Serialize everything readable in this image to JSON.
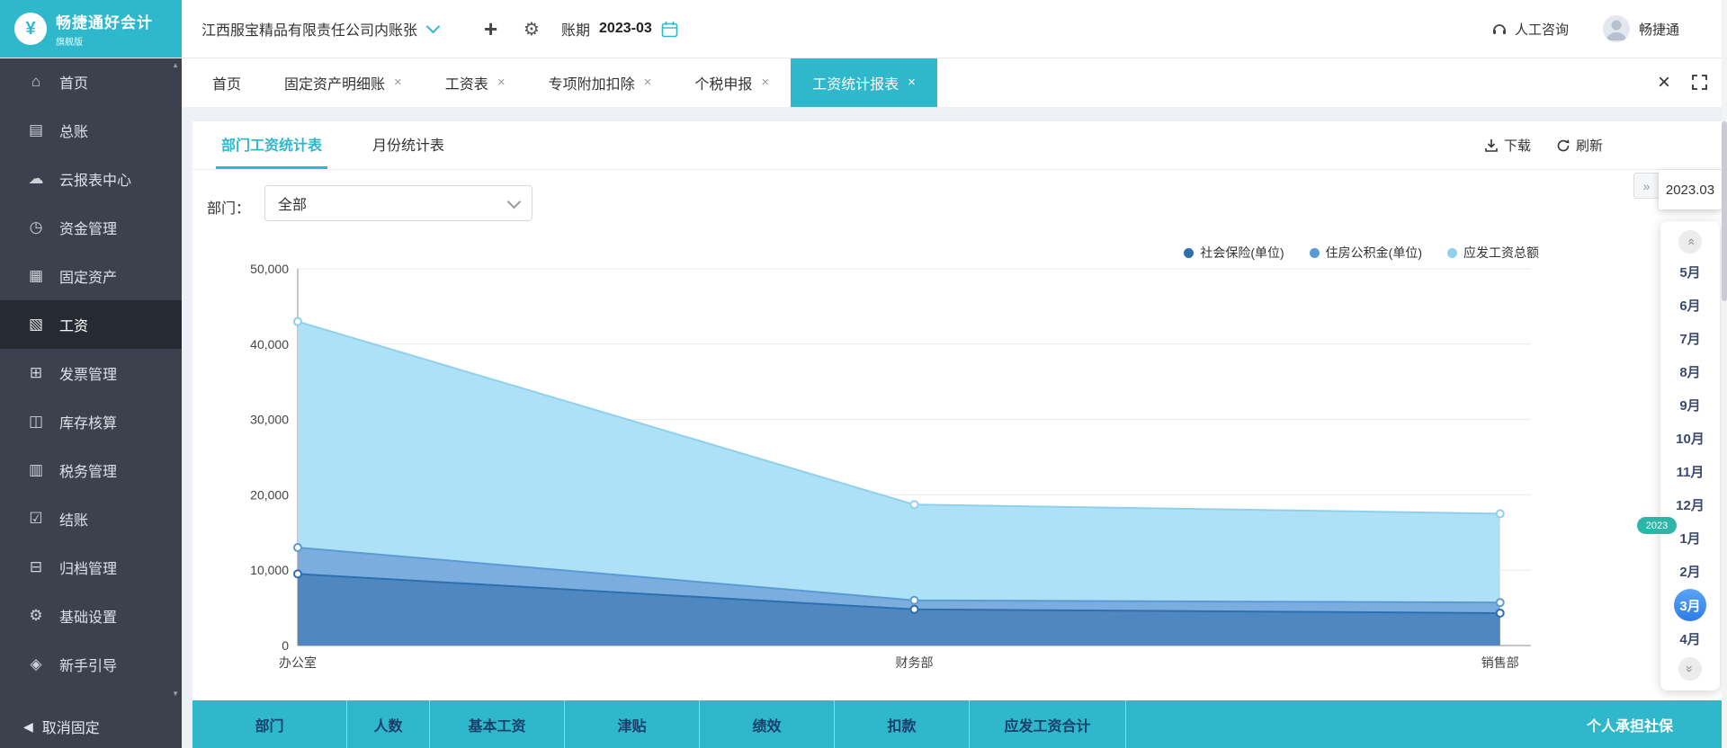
{
  "colors": {
    "teal": "#2FB8CC",
    "sidebar_bg": "#3c414d",
    "month_active_blue": "#2f7ce8",
    "year_badge_teal": "#2db5a8"
  },
  "glyphs": {
    "close": "×",
    "collapse_right": "»",
    "scroll_up": "▲",
    "scroll_down": "▼",
    "pin_left": "◀",
    "plus": "+",
    "gear": "⚙",
    "logo_currency": "¥"
  },
  "topbar": {
    "app_name": "畅捷通好会计",
    "app_edition": "旗舰版",
    "company": "江西服宝精品有限责任公司内账张",
    "period_label": "账期",
    "period_value": "2023-03",
    "consult_label": "人工咨询",
    "user_name": "畅捷通"
  },
  "window_tabs": [
    {
      "label": "首页",
      "closable": false,
      "active": false
    },
    {
      "label": "固定资产明细账",
      "closable": true,
      "active": false
    },
    {
      "label": "工资表",
      "closable": true,
      "active": false
    },
    {
      "label": "专项附加扣除",
      "closable": true,
      "active": false
    },
    {
      "label": "个税申报",
      "closable": true,
      "active": false
    },
    {
      "label": "工资统计报表",
      "closable": true,
      "active": true
    }
  ],
  "sidebar": {
    "items": [
      {
        "label": "首页",
        "icon": "home-icon",
        "glyph": "⌂",
        "active": false
      },
      {
        "label": "总账",
        "icon": "general-ledger-icon",
        "glyph": "▤",
        "active": false
      },
      {
        "label": "云报表中心",
        "icon": "cloud-report-icon",
        "glyph": "☁",
        "active": false
      },
      {
        "label": "资金管理",
        "icon": "funds-icon",
        "glyph": "◷",
        "active": false
      },
      {
        "label": "固定资产",
        "icon": "fixed-assets-icon",
        "glyph": "▦",
        "active": false
      },
      {
        "label": "工资",
        "icon": "salary-icon",
        "glyph": "▧",
        "active": true
      },
      {
        "label": "发票管理",
        "icon": "invoice-icon",
        "glyph": "⊞",
        "active": false
      },
      {
        "label": "库存核算",
        "icon": "inventory-icon",
        "glyph": "◫",
        "active": false
      },
      {
        "label": "税务管理",
        "icon": "tax-icon",
        "glyph": "▥",
        "active": false
      },
      {
        "label": "结账",
        "icon": "closing-icon",
        "glyph": "☑",
        "active": false
      },
      {
        "label": "归档管理",
        "icon": "archive-icon",
        "glyph": "⊟",
        "active": false
      },
      {
        "label": "基础设置",
        "icon": "settings-icon",
        "glyph": "⚙",
        "active": false
      },
      {
        "label": "新手引导",
        "icon": "guide-icon",
        "glyph": "◈",
        "active": false
      }
    ],
    "pin_label": "取消固定"
  },
  "report_panel": {
    "tabs": [
      {
        "label": "部门工资统计表",
        "active": true
      },
      {
        "label": "月份统计表",
        "active": false
      }
    ],
    "download_label": "下载",
    "refresh_label": "刷新",
    "dept_filter_label": "部门：",
    "dept_filter_value": "全部"
  },
  "chart_data": {
    "type": "area",
    "title": "",
    "xlabel": "",
    "ylabel": "",
    "categories": [
      "办公室",
      "财务部",
      "销售部"
    ],
    "category_positions": [
      0,
      0.5,
      0.975
    ],
    "series": [
      {
        "name": "社会保险(单位)",
        "values": [
          9500,
          4800,
          4300
        ],
        "color": "#2e6fae",
        "fill": "#4d85bf"
      },
      {
        "name": "住房公积金(单位)",
        "values": [
          13000,
          6000,
          5700
        ],
        "color": "#5b9bd5",
        "fill": "#78abdd"
      },
      {
        "name": "应发工资总额",
        "values": [
          43000,
          18700,
          17500
        ],
        "color": "#8fd0ec",
        "fill": "#abdff5"
      }
    ],
    "ylim": [
      0,
      50000
    ],
    "ytick_step": 10000,
    "grid": true,
    "legend_position": "top-right"
  },
  "summary_table": {
    "headers": [
      "部门",
      "人数",
      "基本工资",
      "津贴",
      "绩效",
      "扣款",
      "应发工资合计",
      "个人承担社保"
    ]
  },
  "datepicker": {
    "current": "2023.03",
    "year_badge": "2023",
    "months": [
      "5月",
      "6月",
      "7月",
      "8月",
      "9月",
      "10月",
      "11月",
      "12月",
      "1月",
      "2月",
      "3月",
      "4月"
    ],
    "active_month": "3月"
  }
}
